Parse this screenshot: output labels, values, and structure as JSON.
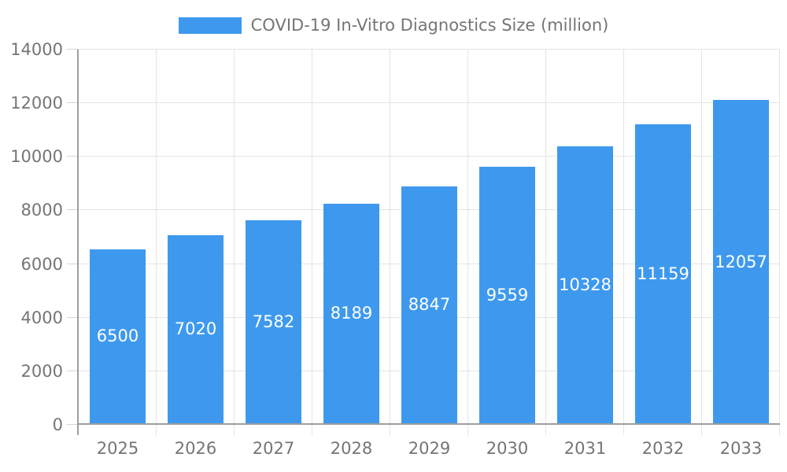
{
  "legend": {
    "label": "COVID-19 In-Vitro Diagnostics Size (million)"
  },
  "colors": {
    "bar": "#3E99EE",
    "grid": "#e4e4e4",
    "axis": "#9e9e9e",
    "tick": "#d6d6d6",
    "axis_text": "#757575",
    "bar_label_text": "#ffffff",
    "background": "#ffffff"
  },
  "chart_data": {
    "type": "bar",
    "title": "COVID-19 In-Vitro Diagnostics Size (million)",
    "categories": [
      "2025",
      "2026",
      "2027",
      "2028",
      "2029",
      "2030",
      "2031",
      "2032",
      "2033"
    ],
    "values": [
      6500,
      7020,
      7582,
      8189,
      8847,
      9559,
      10328,
      11159,
      12057
    ],
    "series_name": "COVID-19 In-Vitro Diagnostics Size (million)",
    "xlabel": "",
    "ylabel": "",
    "ylim": [
      0,
      14000
    ],
    "ytick_interval": 2000,
    "ytick_labels": [
      "0",
      "2000",
      "4000",
      "6000",
      "8000",
      "10000",
      "12000",
      "14000"
    ],
    "grid": true,
    "legend_position": "top",
    "bar_labels_shown": true,
    "bar_label_position": "center"
  }
}
